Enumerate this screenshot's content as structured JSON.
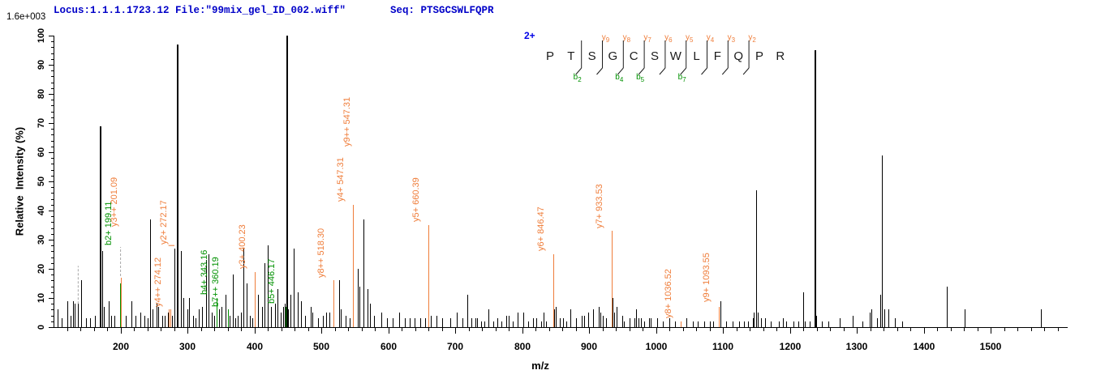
{
  "header": {
    "base_peak_intensity": "1.6e+003",
    "locus_text": "Locus:1.1.1.1723.12 File:\"99mix_gel_ID_002.wiff\"",
    "seq_label": "Seq:",
    "seq_value": "PTSGCSWLFQPR"
  },
  "colors": {
    "y_ion": "#ef7d3a",
    "b_ion": "#009100",
    "header_blue": "#0000c8",
    "charge_blue": "#0000e6",
    "peak_black": "#000000",
    "leader_gray": "#a8a8a8",
    "letter_dark": "#1c1c1c"
  },
  "sequence": {
    "charge": "2+",
    "residues": [
      "P",
      "T",
      "S",
      "G",
      "C",
      "S",
      "W",
      "L",
      "F",
      "Q",
      "P",
      "R"
    ],
    "cuts": [
      {
        "after": 1,
        "b": "b2"
      },
      {
        "after": 2,
        "y": "y9"
      },
      {
        "after": 3,
        "y": "y8",
        "b": "b4"
      },
      {
        "after": 4,
        "y": "y7",
        "b": "b5"
      },
      {
        "after": 5,
        "y": "y6"
      },
      {
        "after": 6,
        "y": "y5",
        "b": "b7"
      },
      {
        "after": 7,
        "y": "y4"
      },
      {
        "after": 8,
        "y": "y3"
      },
      {
        "after": 9,
        "y": "y2"
      }
    ]
  },
  "axes": {
    "x_label": "m/z",
    "y_label": "Relative  Intensity (%)",
    "x_major_ticks": [
      200,
      300,
      400,
      500,
      600,
      700,
      800,
      900,
      1000,
      1100,
      1200,
      1300,
      1400,
      1500
    ],
    "y_major_ticks": [
      0,
      10,
      20,
      30,
      40,
      50,
      60,
      70,
      80,
      90,
      100
    ],
    "x_minor_step": 20,
    "y_minor_step": 2,
    "x_range": [
      100,
      1614
    ],
    "y_range": [
      0,
      100
    ]
  },
  "chart_data": {
    "type": "bar",
    "subtype": "ms2-fragmentation-stick-spectrum",
    "title": "",
    "xlabel": "m/z",
    "ylabel": "Relative Intensity (%)",
    "xlim": [
      100,
      1614
    ],
    "ylim": [
      0,
      100
    ],
    "grid": false,
    "base_peak_absolute_intensity": "1.6e+003",
    "peak_format": [
      "mz",
      "rel_intensity_pct",
      "ion_type 0=unassigned 1=y-ion(orange) 2=b-ion(green)"
    ],
    "peaks": [
      [
        105.7,
        6,
        0
      ],
      [
        112,
        3,
        0
      ],
      [
        120.6,
        9,
        0
      ],
      [
        126,
        4,
        0
      ],
      [
        129,
        9,
        0
      ],
      [
        132,
        8,
        0
      ],
      [
        136.8,
        8,
        0
      ],
      [
        141.6,
        16,
        0
      ],
      [
        148.5,
        3,
        0
      ],
      [
        155,
        3,
        0
      ],
      [
        162,
        4,
        0
      ],
      [
        169.6,
        69,
        0
      ],
      [
        172.5,
        26,
        0
      ],
      [
        175.4,
        7,
        0
      ],
      [
        181.9,
        9,
        0
      ],
      [
        186,
        4,
        0
      ],
      [
        191.5,
        4,
        0
      ],
      [
        199.11,
        15,
        2
      ],
      [
        201.09,
        17,
        1
      ],
      [
        208,
        4,
        0
      ],
      [
        216,
        9,
        0
      ],
      [
        222,
        4,
        0
      ],
      [
        229.3,
        5,
        0
      ],
      [
        236,
        4,
        0
      ],
      [
        240,
        3,
        0
      ],
      [
        244.2,
        37,
        0
      ],
      [
        248.3,
        6,
        0
      ],
      [
        253.6,
        8,
        0
      ],
      [
        256.2,
        7,
        0
      ],
      [
        262,
        4,
        0
      ],
      [
        266,
        4,
        0
      ],
      [
        270.5,
        5,
        0
      ],
      [
        272.17,
        6,
        1
      ],
      [
        274.12,
        6,
        1
      ],
      [
        277,
        4,
        0
      ],
      [
        280.6,
        27,
        0
      ],
      [
        284.3,
        97,
        0
      ],
      [
        289.9,
        26,
        0
      ],
      [
        293.6,
        10,
        0
      ],
      [
        299.6,
        6,
        0
      ],
      [
        302.8,
        10,
        0
      ],
      [
        308,
        4,
        0
      ],
      [
        312,
        3,
        0
      ],
      [
        317,
        6,
        0
      ],
      [
        322.2,
        7,
        0
      ],
      [
        328.2,
        23,
        0
      ],
      [
        331.1,
        25,
        0
      ],
      [
        336,
        5,
        0
      ],
      [
        339.5,
        4,
        0
      ],
      [
        343.16,
        10,
        2
      ],
      [
        347.3,
        6,
        0
      ],
      [
        351.3,
        7,
        0
      ],
      [
        357.4,
        11,
        0
      ],
      [
        360.19,
        6,
        2
      ],
      [
        363.5,
        4,
        0
      ],
      [
        367.5,
        18,
        0
      ],
      [
        371.4,
        3,
        0
      ],
      [
        375.5,
        4,
        0
      ],
      [
        379.6,
        5,
        0
      ],
      [
        383.6,
        27,
        0
      ],
      [
        388.5,
        15,
        0
      ],
      [
        393,
        4,
        0
      ],
      [
        396.5,
        3,
        0
      ],
      [
        400.23,
        19,
        1
      ],
      [
        405.2,
        11,
        0
      ],
      [
        411.3,
        7,
        0
      ],
      [
        415.4,
        22,
        0
      ],
      [
        420.2,
        28,
        0
      ],
      [
        424.3,
        7,
        0
      ],
      [
        430.7,
        8,
        0
      ],
      [
        434.8,
        13,
        0
      ],
      [
        438.8,
        5,
        0
      ],
      [
        443.1,
        7,
        0
      ],
      [
        444.9,
        8,
        0
      ],
      [
        446.17,
        7,
        2
      ],
      [
        447.6,
        100,
        0
      ],
      [
        450.3,
        6,
        0
      ],
      [
        453.6,
        11,
        0
      ],
      [
        458.4,
        27,
        0
      ],
      [
        464.5,
        12,
        0
      ],
      [
        469.7,
        9,
        0
      ],
      [
        476,
        4,
        0
      ],
      [
        483.9,
        7,
        0
      ],
      [
        487.2,
        5,
        0
      ],
      [
        495,
        3,
        0
      ],
      [
        502.8,
        4,
        0
      ],
      [
        507.5,
        5,
        0
      ],
      [
        512,
        5,
        0
      ],
      [
        518.3,
        16,
        1
      ],
      [
        526.3,
        16,
        0
      ],
      [
        529.5,
        6,
        0
      ],
      [
        536,
        4,
        0
      ],
      [
        543,
        3,
        0
      ],
      [
        547.31,
        42,
        1
      ],
      [
        554.5,
        20,
        0
      ],
      [
        557.2,
        14,
        0
      ],
      [
        562.8,
        37,
        0
      ],
      [
        569,
        13,
        0
      ],
      [
        572.7,
        8,
        0
      ],
      [
        579,
        4,
        0
      ],
      [
        589.7,
        5,
        0
      ],
      [
        598,
        3,
        0
      ],
      [
        607,
        3,
        0
      ],
      [
        616,
        5,
        0
      ],
      [
        625,
        3,
        0
      ],
      [
        632,
        3,
        0
      ],
      [
        639.4,
        3,
        0
      ],
      [
        648,
        3,
        0
      ],
      [
        655.5,
        3,
        0
      ],
      [
        660.39,
        35,
        1
      ],
      [
        663.2,
        4,
        0
      ],
      [
        672.5,
        4,
        0
      ],
      [
        681,
        3,
        0
      ],
      [
        692.7,
        3,
        0
      ],
      [
        702.8,
        5,
        0
      ],
      [
        711,
        3,
        0
      ],
      [
        718.2,
        11,
        0
      ],
      [
        724,
        3,
        0
      ],
      [
        729.9,
        3,
        0
      ],
      [
        732.4,
        3,
        0
      ],
      [
        739.2,
        2,
        0
      ],
      [
        743.3,
        2,
        0
      ],
      [
        750.1,
        6,
        0
      ],
      [
        757.4,
        2,
        0
      ],
      [
        763.4,
        3,
        0
      ],
      [
        769.5,
        2,
        0
      ],
      [
        776.5,
        4,
        0
      ],
      [
        779.6,
        4,
        0
      ],
      [
        785.7,
        2,
        0
      ],
      [
        793,
        5,
        0
      ],
      [
        801.8,
        5,
        0
      ],
      [
        809,
        2,
        0
      ],
      [
        816,
        3,
        0
      ],
      [
        821.2,
        3,
        0
      ],
      [
        828.1,
        2,
        0
      ],
      [
        832.1,
        5,
        0
      ],
      [
        836.2,
        2,
        0
      ],
      [
        846.47,
        25,
        1
      ],
      [
        848,
        6,
        0
      ],
      [
        850.3,
        7,
        0
      ],
      [
        856.4,
        3,
        0
      ],
      [
        861.2,
        3,
        0
      ],
      [
        866,
        2,
        0
      ],
      [
        872.5,
        6,
        0
      ],
      [
        880,
        3,
        0
      ],
      [
        889.5,
        4,
        0
      ],
      [
        893,
        4,
        0
      ],
      [
        898.8,
        5,
        0
      ],
      [
        905.7,
        6,
        0
      ],
      [
        914.2,
        7,
        0
      ],
      [
        917.5,
        5,
        0
      ],
      [
        920,
        4,
        0
      ],
      [
        926,
        3,
        0
      ],
      [
        933.53,
        33,
        1
      ],
      [
        935.2,
        10,
        0
      ],
      [
        938,
        5,
        0
      ],
      [
        941,
        7,
        0
      ],
      [
        949.3,
        4,
        0
      ],
      [
        952.5,
        2,
        0
      ],
      [
        961,
        3,
        0
      ],
      [
        967.5,
        3,
        0
      ],
      [
        970,
        6,
        0
      ],
      [
        973.5,
        3,
        0
      ],
      [
        977.6,
        3,
        0
      ],
      [
        983,
        2,
        0
      ],
      [
        989.7,
        3,
        0
      ],
      [
        992.1,
        3,
        0
      ],
      [
        1002,
        3,
        0
      ],
      [
        1010,
        2,
        0
      ],
      [
        1020,
        3,
        0
      ],
      [
        1028,
        2,
        0
      ],
      [
        1036.52,
        2,
        1
      ],
      [
        1045.5,
        3,
        0
      ],
      [
        1055.2,
        2,
        0
      ],
      [
        1062,
        2,
        0
      ],
      [
        1072.5,
        2,
        0
      ],
      [
        1080,
        2,
        0
      ],
      [
        1086,
        2,
        0
      ],
      [
        1093.55,
        7,
        1
      ],
      [
        1096.2,
        9,
        0
      ],
      [
        1105,
        2,
        0
      ],
      [
        1115,
        2,
        0
      ],
      [
        1124,
        2,
        0
      ],
      [
        1131,
        2,
        0
      ],
      [
        1138,
        2,
        0
      ],
      [
        1144.4,
        3,
        0
      ],
      [
        1146.5,
        5,
        0
      ],
      [
        1149.5,
        47,
        0
      ],
      [
        1152.5,
        5,
        0
      ],
      [
        1157,
        3,
        0
      ],
      [
        1163.2,
        3,
        0
      ],
      [
        1172,
        2,
        0
      ],
      [
        1183.4,
        2,
        0
      ],
      [
        1190,
        3,
        0
      ],
      [
        1195,
        2,
        0
      ],
      [
        1205.6,
        2,
        0
      ],
      [
        1213,
        2,
        0
      ],
      [
        1219.7,
        12,
        0
      ],
      [
        1222.5,
        2,
        0
      ],
      [
        1230,
        2,
        0
      ],
      [
        1236.4,
        95,
        0
      ],
      [
        1239,
        4,
        0
      ],
      [
        1248,
        2,
        0
      ],
      [
        1258,
        2,
        0
      ],
      [
        1275,
        3,
        0
      ],
      [
        1293.5,
        4,
        0
      ],
      [
        1308,
        2,
        0
      ],
      [
        1319,
        5,
        0
      ],
      [
        1322,
        6,
        0
      ],
      [
        1330,
        3,
        0
      ],
      [
        1335.5,
        11,
        0
      ],
      [
        1337.8,
        59,
        0
      ],
      [
        1341,
        6,
        0
      ],
      [
        1347.3,
        6,
        0
      ],
      [
        1357.4,
        3,
        0
      ],
      [
        1368,
        2,
        0
      ],
      [
        1435,
        14,
        0
      ],
      [
        1461.6,
        6,
        0
      ],
      [
        1575,
        6,
        0
      ]
    ],
    "ion_labels": [
      {
        "text": "b2+ 199.11",
        "mz": 199.11,
        "type": 2,
        "bottom_pct": 28,
        "dx": -8
      },
      {
        "text": "y3++ 201.09",
        "mz": 201.09,
        "type": 1,
        "bottom_pct": 34.5,
        "dx": -2
      },
      {
        "text": "y2+ 272.17",
        "mz": 272.17,
        "type": 1,
        "bottom_pct": 28.3,
        "dx": 0
      },
      {
        "text": "y4++ 274.12",
        "mz": 274.12,
        "type": 1,
        "bottom_pct": 7,
        "dx": -9
      },
      {
        "text": "b4+ 343.16",
        "mz": 343.16,
        "type": 2,
        "bottom_pct": 11,
        "dx": -9
      },
      {
        "text": "b7++ 360.19",
        "mz": 360.19,
        "type": 2,
        "bottom_pct": 7,
        "dx": -9
      },
      {
        "text": "y3+ 400.23",
        "mz": 400.23,
        "type": 1,
        "bottom_pct": 20,
        "dx": -9
      },
      {
        "text": "b5+ 446.17",
        "mz": 446.17,
        "type": 2,
        "bottom_pct": 8,
        "dx": -11
      },
      {
        "text": "y8++ 518.30",
        "mz": 518.3,
        "type": 1,
        "bottom_pct": 17,
        "dx": -9
      },
      {
        "text": "y4+ 547.31",
        "mz": 547.31,
        "type": 1,
        "bottom_pct": 43,
        "dx": -9
      },
      {
        "text": "y9++ 547.31",
        "mz": 547.31,
        "type": 1,
        "bottom_pct": 62,
        "dx": -1
      },
      {
        "text": "y5+ 660.39",
        "mz": 660.39,
        "type": 1,
        "bottom_pct": 36,
        "dx": -9
      },
      {
        "text": "y6+ 846.47",
        "mz": 846.47,
        "type": 1,
        "bottom_pct": 26,
        "dx": -9
      },
      {
        "text": "y7+ 933.53",
        "mz": 933.53,
        "type": 1,
        "bottom_pct": 34,
        "dx": -9
      },
      {
        "text": "y8+ 1036.52",
        "mz": 1036.52,
        "type": 1,
        "bottom_pct": 3,
        "dx": -9
      },
      {
        "text": "y9+ 1093.55",
        "mz": 1093.55,
        "type": 1,
        "bottom_pct": 8.5,
        "dx": -9
      }
    ],
    "label_leaders": [
      {
        "mz": 136.8,
        "from_pct": 8,
        "to_pct": 21
      },
      {
        "mz": 200.1,
        "from_pct": 17.5,
        "to_pct": 27.5
      }
    ],
    "label_connectors": [
      {
        "mz_a": 274.12,
        "mz_b": 272.17,
        "pct": 28
      }
    ]
  }
}
